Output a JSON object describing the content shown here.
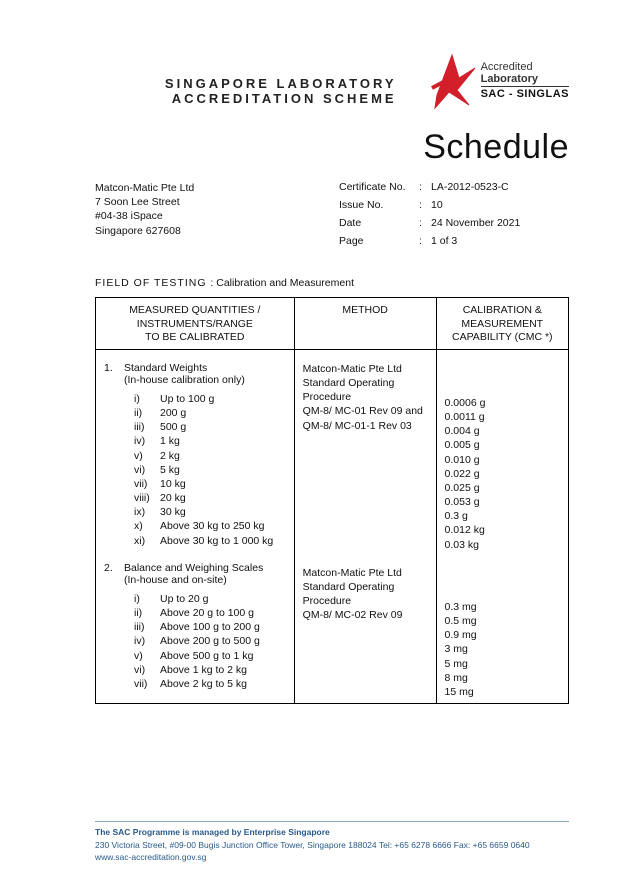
{
  "header": {
    "line1": "SINGAPORE LABORATORY",
    "line2": "ACCREDITATION SCHEME",
    "logo": {
      "accredited": "Accredited",
      "laboratory": "Laboratory",
      "sac": "SAC - SINGLAS",
      "star_color": "#d21f2a"
    }
  },
  "schedule_title": "Schedule",
  "org": {
    "l1": "Matcon-Matic Pte Ltd",
    "l2": "7 Soon Lee Street",
    "l3": "#04-38 iSpace",
    "l4": "Singapore 627608"
  },
  "meta": {
    "cert_label": "Certificate No.",
    "cert_val": "LA-2012-0523-C",
    "issue_label": "Issue No.",
    "issue_val": "10",
    "date_label": "Date",
    "date_val": "24 November 2021",
    "page_label": "Page",
    "page_val": "1 of 3"
  },
  "field_label": "FIELD OF TESTING",
  "field_val": ": Calibration and Measurement",
  "table": {
    "h1a": "MEASURED QUANTITIES /",
    "h1b": "INSTRUMENTS/RANGE",
    "h1c": "TO BE CALIBRATED",
    "h2": "METHOD",
    "h3a": "CALIBRATION &",
    "h3b": "MEASUREMENT",
    "h3c": "CAPABILITY (CMC *)"
  },
  "section1": {
    "num": "1.",
    "title": "Standard Weights",
    "subtitle": "(In-house calibration only)",
    "method_l1": "Matcon-Matic Pte Ltd",
    "method_l2": "Standard Operating",
    "method_l3": "Procedure",
    "method_l4": "QM-8/ MC-01 Rev 09 and",
    "method_l5": "QM-8/ MC-01-1 Rev 03",
    "rows": [
      {
        "r": "i)",
        "t": "Up to 100 g",
        "c": "0.0006 g"
      },
      {
        "r": "ii)",
        "t": "200 g",
        "c": "0.0011 g"
      },
      {
        "r": "iii)",
        "t": "500 g",
        "c": "0.004 g"
      },
      {
        "r": "iv)",
        "t": "1 kg",
        "c": "0.005 g"
      },
      {
        "r": "v)",
        "t": "2 kg",
        "c": "0.010 g"
      },
      {
        "r": "vi)",
        "t": "5 kg",
        "c": "0.022 g"
      },
      {
        "r": "vii)",
        "t": "10 kg",
        "c": "0.025 g"
      },
      {
        "r": "viii)",
        "t": "20 kg",
        "c": "0.053 g"
      },
      {
        "r": "ix)",
        "t": "30 kg",
        "c": "0.3 g"
      },
      {
        "r": "x)",
        "t": "Above 30 kg to 250 kg",
        "c": "0.012 kg"
      },
      {
        "r": "xi)",
        "t": "Above 30 kg to 1 000 kg",
        "c": "0.03 kg"
      }
    ]
  },
  "section2": {
    "num": "2.",
    "title": "Balance and Weighing Scales",
    "subtitle": "(In-house and on-site)",
    "method_l1": "Matcon-Matic Pte Ltd",
    "method_l2": "Standard Operating",
    "method_l3": "Procedure",
    "method_l4": "QM-8/ MC-02 Rev 09",
    "rows": [
      {
        "r": "i)",
        "t": "Up to 20 g",
        "c": "0.3 mg"
      },
      {
        "r": "ii)",
        "t": "Above 20 g to 100 g",
        "c": "0.5 mg"
      },
      {
        "r": "iii)",
        "t": "Above 100 g to 200 g",
        "c": "0.9 mg"
      },
      {
        "r": "iv)",
        "t": "Above 200 g to 500 g",
        "c": "3 mg"
      },
      {
        "r": "v)",
        "t": "Above 500 g to 1 kg",
        "c": "5 mg"
      },
      {
        "r": "vi)",
        "t": "Above 1 kg to 2 kg",
        "c": "8 mg"
      },
      {
        "r": "vii)",
        "t": "Above 2 kg to 5 kg",
        "c": "15 mg"
      }
    ]
  },
  "footer": {
    "f1": "The SAC Programme is managed by Enterprise Singapore",
    "f2": "230 Victoria Street, #09-00 Bugis Junction Office Tower, Singapore 188024  Tel: +65 6278 6666  Fax: +65 6659 0640",
    "f3": "www.sac-accreditation.gov.sg",
    "border_color": "#8aa6c1",
    "text_color": "#2a5a8a"
  }
}
